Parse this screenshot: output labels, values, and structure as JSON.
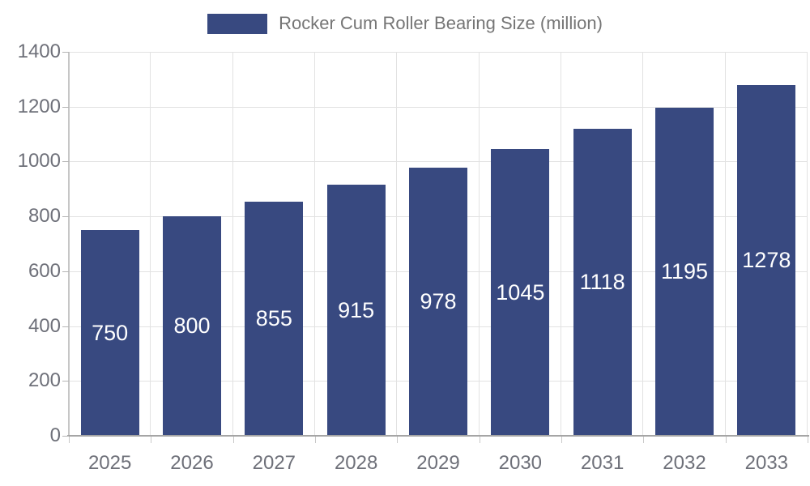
{
  "legend": {
    "label": "Rocker Cum Roller Bearing Size (million)"
  },
  "chart_data": {
    "type": "bar",
    "title": "Rocker Cum Roller Bearing Size (million)",
    "categories": [
      "2025",
      "2026",
      "2027",
      "2028",
      "2029",
      "2030",
      "2031",
      "2032",
      "2033"
    ],
    "series": [
      {
        "name": "Rocker Cum Roller Bearing Size (million)",
        "values": [
          750,
          800,
          855,
          915,
          978,
          1045,
          1118,
          1195,
          1278
        ]
      }
    ],
    "xlabel": "",
    "ylabel": "",
    "ylim": [
      0,
      1400
    ],
    "yticks": [
      0,
      200,
      400,
      600,
      800,
      1000,
      1200,
      1400
    ],
    "grid": true,
    "legend_position": "top-center",
    "bar_value_labels_inside": true,
    "colors": {
      "bar": "#384980",
      "grid_line": "#e2e2e2",
      "x_axis_line": "#a5a5a5",
      "y_axis_line": "#c6c6c6",
      "axis_text": "#6e7079",
      "legend_text": "#757575",
      "bar_label_text": "#ffffff",
      "background": "#ffffff"
    }
  }
}
